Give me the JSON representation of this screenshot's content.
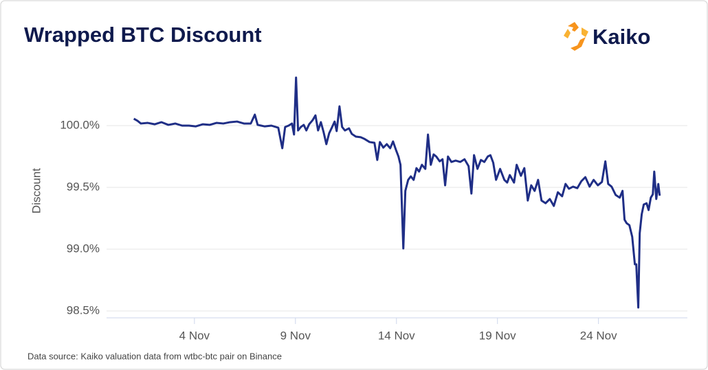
{
  "chart_data": {
    "type": "line",
    "title": "Wrapped BTC Discount",
    "logo": "Kaiko",
    "ylabel": "Discount",
    "source": "Data source: Kaiko valuation data from wtbc-btc pair on Binance",
    "color": "#1f2e86",
    "grid": true,
    "xlim": [
      -0.35,
      28.4
    ],
    "xticks": [
      {
        "value": 4,
        "label": "4 Nov"
      },
      {
        "value": 9,
        "label": "9 Nov"
      },
      {
        "value": 14,
        "label": "14 Nov"
      },
      {
        "value": 19,
        "label": "19 Nov"
      },
      {
        "value": 24,
        "label": "24 Nov"
      }
    ],
    "ylim": [
      98.45,
      100.45
    ],
    "yticks": [
      {
        "value": 98.5,
        "label": "98.5%"
      },
      {
        "value": 99.0,
        "label": "99.0%"
      },
      {
        "value": 99.5,
        "label": "99.5%"
      },
      {
        "value": 100.0,
        "label": "100.0%"
      }
    ],
    "x": [
      1.0,
      1.18,
      1.35,
      1.69,
      2.03,
      2.37,
      2.71,
      3.05,
      3.39,
      3.73,
      4.07,
      4.41,
      4.75,
      5.09,
      5.43,
      5.77,
      6.11,
      6.45,
      6.79,
      6.99,
      7.13,
      7.47,
      7.81,
      8.15,
      8.35,
      8.49,
      8.66,
      8.83,
      8.93,
      9.03,
      9.13,
      9.27,
      9.41,
      9.54,
      9.68,
      9.85,
      9.99,
      10.12,
      10.26,
      10.39,
      10.53,
      10.67,
      10.8,
      10.94,
      11.04,
      11.18,
      11.31,
      11.45,
      11.65,
      11.79,
      11.99,
      12.23,
      12.4,
      12.67,
      12.91,
      13.05,
      13.18,
      13.35,
      13.52,
      13.69,
      13.83,
      13.97,
      14.1,
      14.2,
      14.34,
      14.44,
      14.58,
      14.71,
      14.85,
      14.99,
      15.12,
      15.26,
      15.43,
      15.56,
      15.7,
      15.84,
      15.97,
      16.14,
      16.28,
      16.41,
      16.55,
      16.72,
      16.93,
      17.16,
      17.37,
      17.57,
      17.71,
      17.84,
      18.01,
      18.18,
      18.35,
      18.52,
      18.65,
      18.79,
      18.93,
      19.13,
      19.34,
      19.48,
      19.61,
      19.82,
      19.95,
      20.16,
      20.33,
      20.5,
      20.67,
      20.84,
      21.01,
      21.18,
      21.38,
      21.59,
      21.79,
      21.99,
      22.2,
      22.37,
      22.54,
      22.74,
      22.95,
      23.15,
      23.35,
      23.56,
      23.76,
      23.97,
      24.17,
      24.34,
      24.48,
      24.65,
      24.85,
      25.05,
      25.19,
      25.29,
      25.39,
      25.53,
      25.67,
      25.8,
      25.87,
      25.97,
      26.04,
      26.14,
      26.24,
      26.38,
      26.48,
      26.59,
      26.69,
      26.76,
      26.86,
      26.96,
      27.03
    ],
    "values": [
      100.056,
      100.039,
      100.017,
      100.022,
      100.011,
      100.028,
      100.006,
      100.017,
      100.0,
      100.0,
      99.994,
      100.011,
      100.006,
      100.022,
      100.017,
      100.028,
      100.033,
      100.017,
      100.017,
      100.089,
      100.006,
      99.994,
      100.0,
      99.983,
      99.817,
      99.989,
      100.0,
      100.017,
      99.928,
      100.389,
      99.961,
      99.989,
      100.006,
      99.961,
      100.011,
      100.044,
      100.083,
      99.961,
      100.028,
      99.95,
      99.85,
      99.939,
      99.983,
      100.033,
      99.956,
      100.156,
      99.989,
      99.961,
      99.978,
      99.933,
      99.911,
      99.906,
      99.894,
      99.867,
      99.861,
      99.722,
      99.867,
      99.822,
      99.85,
      99.817,
      99.872,
      99.806,
      99.75,
      99.683,
      99.006,
      99.472,
      99.561,
      99.589,
      99.561,
      99.656,
      99.628,
      99.683,
      99.65,
      99.928,
      99.683,
      99.767,
      99.75,
      99.711,
      99.728,
      99.517,
      99.75,
      99.706,
      99.717,
      99.706,
      99.728,
      99.672,
      99.45,
      99.761,
      99.65,
      99.722,
      99.706,
      99.75,
      99.761,
      99.7,
      99.561,
      99.65,
      99.561,
      99.539,
      99.6,
      99.539,
      99.683,
      99.594,
      99.656,
      99.394,
      99.517,
      99.472,
      99.561,
      99.394,
      99.372,
      99.406,
      99.35,
      99.461,
      99.428,
      99.528,
      99.489,
      99.506,
      99.494,
      99.55,
      99.583,
      99.506,
      99.561,
      99.517,
      99.544,
      99.711,
      99.528,
      99.506,
      99.439,
      99.417,
      99.472,
      99.239,
      99.211,
      99.194,
      99.1,
      98.878,
      98.878,
      98.528,
      99.128,
      99.283,
      99.361,
      99.372,
      99.317,
      99.417,
      99.444,
      99.628,
      99.406,
      99.528,
      99.433
    ]
  }
}
